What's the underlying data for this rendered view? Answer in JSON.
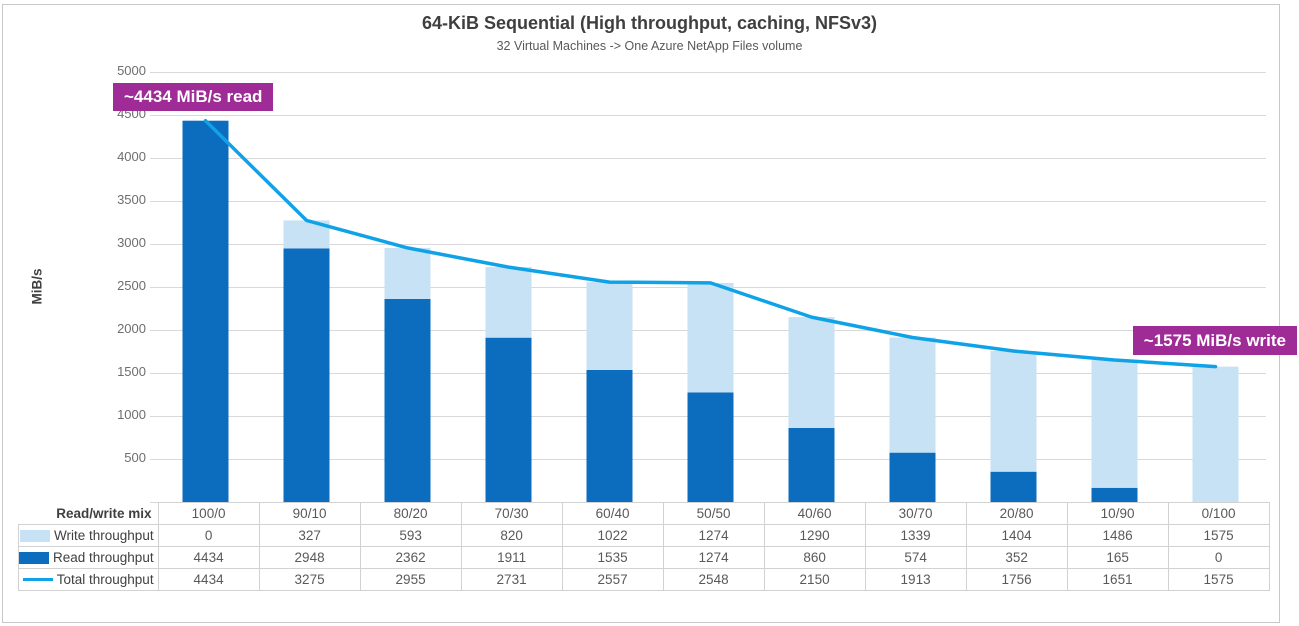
{
  "chart_data": {
    "type": "bar",
    "subtype": "stacked-bars-with-total-line-overlay",
    "title": "64-KiB Sequential (High throughput, caching, NFSv3)",
    "subtitle": "32 Virtual Machines -> One Azure NetApp Files volume",
    "ylabel": "MiB/s",
    "ylim": [
      0,
      5000
    ],
    "ytick_step": 500,
    "ytick_labels": [
      5000,
      4500,
      4000,
      3500,
      3000,
      2500,
      2000,
      1500,
      1000,
      500
    ],
    "grid": true,
    "legend_position": "table-left-column",
    "x_header": "Read/write mix",
    "categories": [
      "100/0",
      "90/10",
      "80/20",
      "70/30",
      "60/40",
      "50/50",
      "40/60",
      "30/70",
      "20/80",
      "10/90",
      "0/100"
    ],
    "series": [
      {
        "name": "Write throughput",
        "type": "bar",
        "stack": 2,
        "color": "#c7e2f4",
        "values": [
          0,
          327,
          593,
          820,
          1022,
          1274,
          1290,
          1339,
          1404,
          1486,
          1575
        ]
      },
      {
        "name": "Read throughput",
        "type": "bar",
        "stack": 1,
        "color": "#0c6cbe",
        "values": [
          4434,
          2948,
          2362,
          1911,
          1535,
          1274,
          860,
          574,
          352,
          165,
          0
        ]
      },
      {
        "name": "Total throughput",
        "type": "line",
        "color": "#10a2e6",
        "values": [
          4434,
          3275,
          2955,
          2731,
          2557,
          2548,
          2150,
          1913,
          1756,
          1651,
          1575
        ]
      }
    ],
    "annotations": [
      {
        "id": "read",
        "text": "~4434 MiB/s read",
        "color": "#9e2b96"
      },
      {
        "id": "write",
        "text": "~1575 MiB/s write",
        "color": "#9e2b96"
      }
    ]
  }
}
